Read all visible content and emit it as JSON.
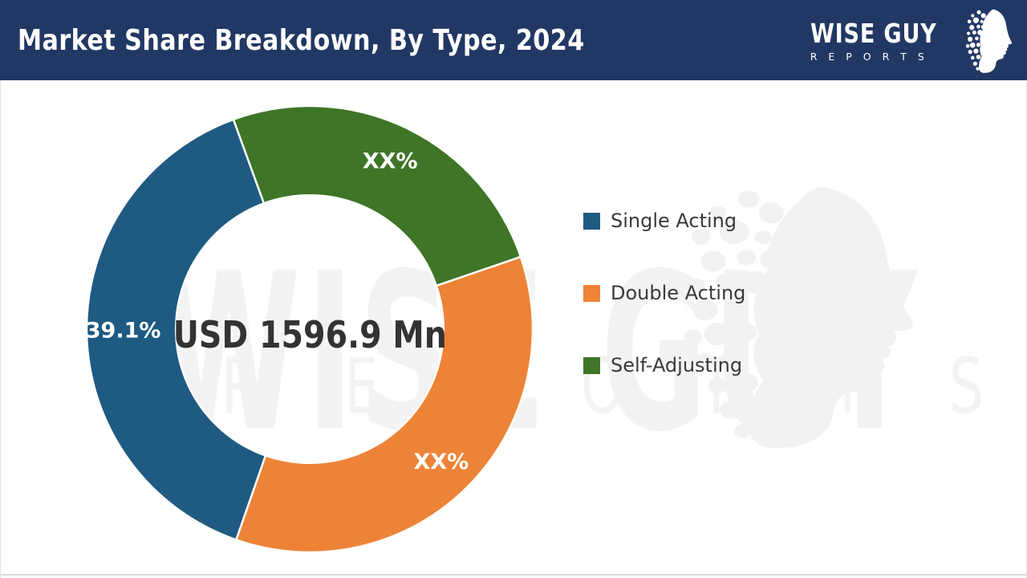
{
  "header": {
    "title": "Market Share Breakdown, By Type, 2024",
    "logo": {
      "name": "WISE GUY",
      "subtitle": "R E P O R T S"
    }
  },
  "watermark": {
    "line1": "WISE GUY",
    "line2": "R E P O R T S"
  },
  "chart_data": {
    "type": "pie",
    "variant": "donut",
    "title": "Market Share Breakdown, By Type, 2024",
    "center_label": "USD 1596.9 Mn",
    "start_angle_deg": 110,
    "direction": "counterclockwise",
    "inner_radius_ratio": 0.6,
    "legend_position": "right",
    "slices": [
      {
        "label": "Single Acting",
        "value_label": "39.1%",
        "percent": 39.1,
        "color": "#1F5A82"
      },
      {
        "label": "Double Acting",
        "value_label": "XX%",
        "percent": 35.6,
        "color": "#ED8336"
      },
      {
        "label": "Self-Adjusting",
        "value_label": "XX%",
        "percent": 25.3,
        "color": "#3E7527"
      }
    ]
  },
  "colors": {
    "header_bg": "#213864",
    "header_text": "#FFFFFF",
    "slice_label_text": "#FFFFFF",
    "slice_separator": "#FFFFFF",
    "center_label_text": "#333333",
    "legend_text": "#3A3A3A",
    "watermark": "#F3F3F5",
    "divider": "#D9D9D9"
  }
}
